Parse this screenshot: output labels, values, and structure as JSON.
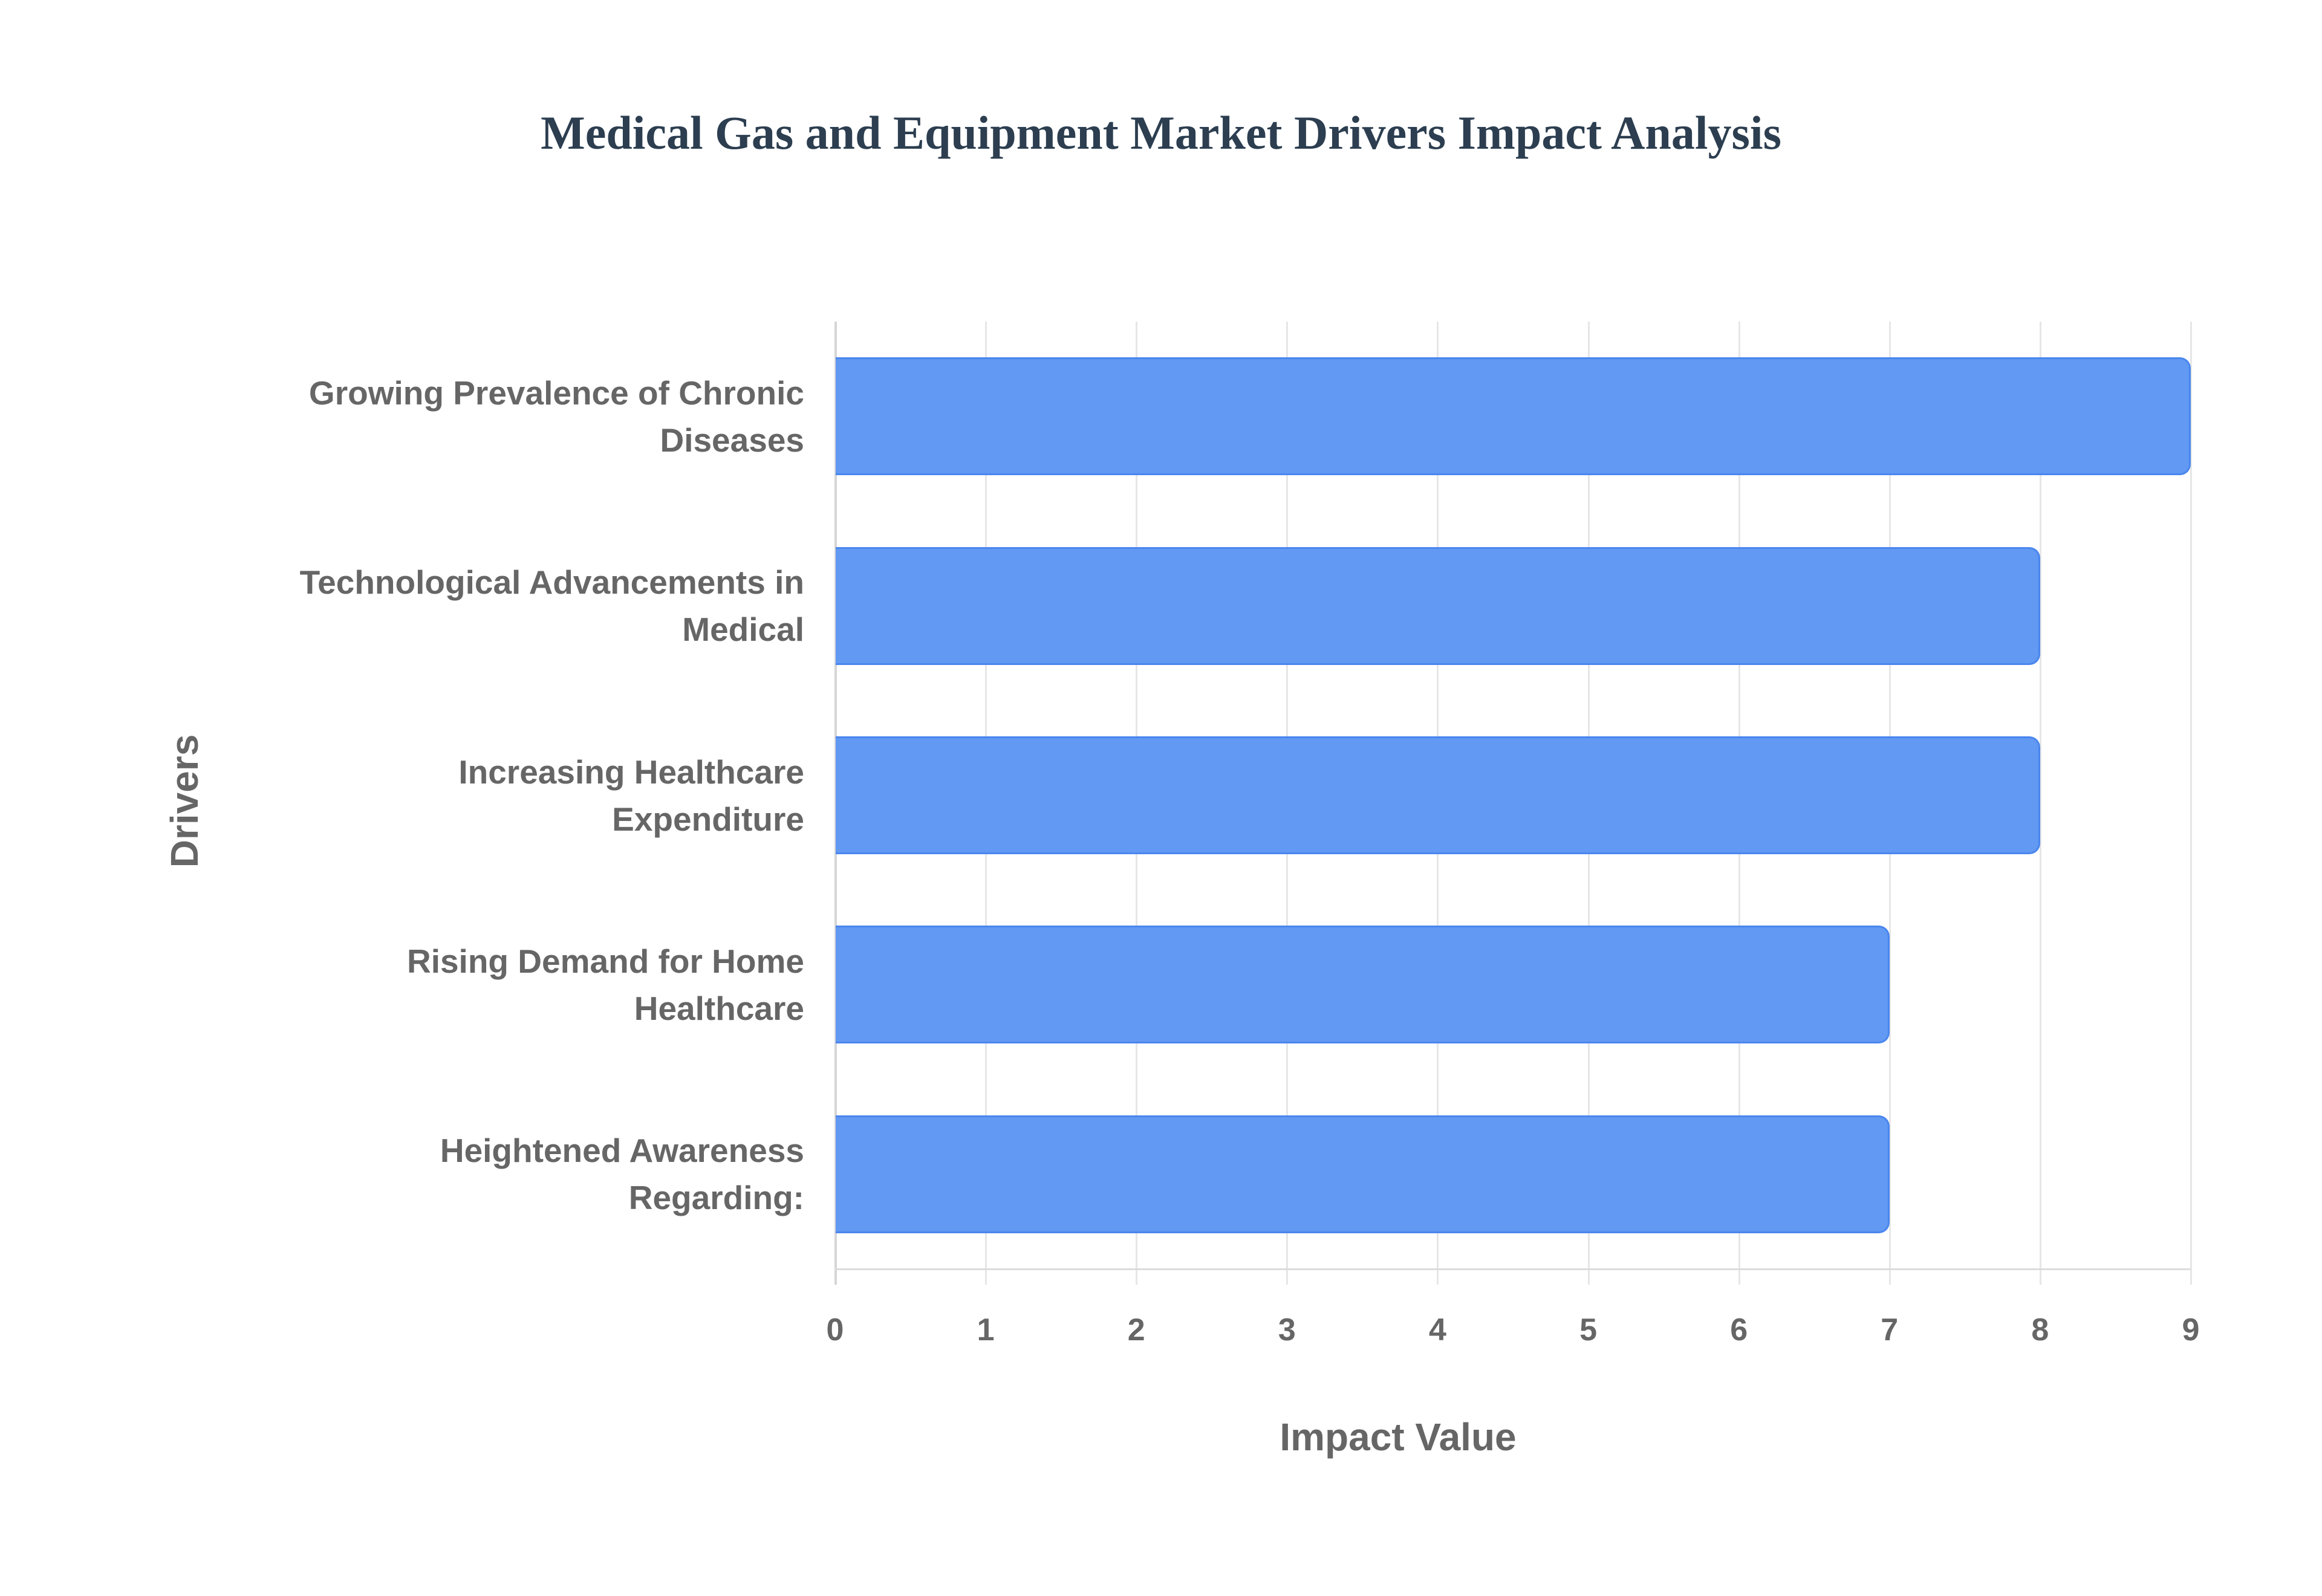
{
  "chart_data": {
    "type": "bar",
    "orientation": "horizontal",
    "title": "Medical Gas and Equipment Market Drivers Impact Analysis",
    "xlabel": "Impact Value",
    "ylabel": "Drivers",
    "categories": [
      "Growing Prevalence of Chronic Diseases",
      "Technological Advancements in Medical",
      "Increasing Healthcare Expenditure",
      "Rising Demand for Home Healthcare",
      "Heightened Awareness Regarding:"
    ],
    "category_lines": [
      [
        "Growing Prevalence of Chronic",
        "Diseases"
      ],
      [
        "Technological Advancements in",
        "Medical"
      ],
      [
        "Increasing Healthcare",
        "Expenditure"
      ],
      [
        "Rising Demand for Home",
        "Healthcare"
      ],
      [
        "Heightened Awareness",
        "Regarding:"
      ]
    ],
    "values": [
      9,
      8,
      8,
      7,
      7
    ],
    "xlim": [
      0,
      9
    ],
    "xticks": [
      "0",
      "1",
      "2",
      "3",
      "4",
      "5",
      "6",
      "7",
      "8",
      "9"
    ],
    "grid": true,
    "legend": null,
    "bar_color": "#6199f3",
    "bar_border_color": "#4a86ee"
  }
}
